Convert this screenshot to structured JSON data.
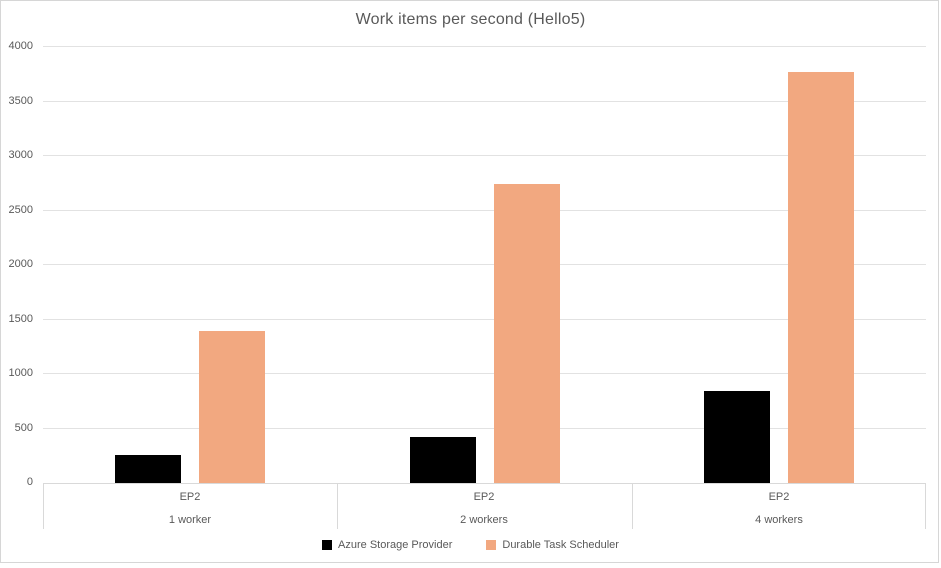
{
  "chart_data": {
    "type": "bar",
    "title": "Work items per second (Hello5)",
    "categories": [
      "EP2 / 1 worker",
      "EP2 / 2 workers",
      "EP2 / 4 workers"
    ],
    "groups": [
      {
        "sku_label": "EP2",
        "worker_label": "1 worker"
      },
      {
        "sku_label": "EP2",
        "worker_label": "2 workers"
      },
      {
        "sku_label": "EP2",
        "worker_label": "4 workers"
      }
    ],
    "series": [
      {
        "name": "Azure Storage Provider",
        "color": "#000000",
        "values": [
          260,
          420,
          840
        ]
      },
      {
        "name": "Durable Task Scheduler",
        "color": "#f2a880",
        "values": [
          1390,
          2740,
          3770
        ]
      }
    ],
    "xlabel": "",
    "ylabel": "",
    "ylim": [
      0,
      4000
    ],
    "ytick_step": 500,
    "yticks": [
      0,
      500,
      1000,
      1500,
      2000,
      2500,
      3000,
      3500,
      4000
    ],
    "grid": true,
    "legend_position": "bottom"
  },
  "colors": {
    "gridline": "#e2e2e2",
    "axis_line": "#d9d9d9",
    "text": "#595959",
    "frame_border": "#d6d6d6",
    "background": "#ffffff"
  }
}
